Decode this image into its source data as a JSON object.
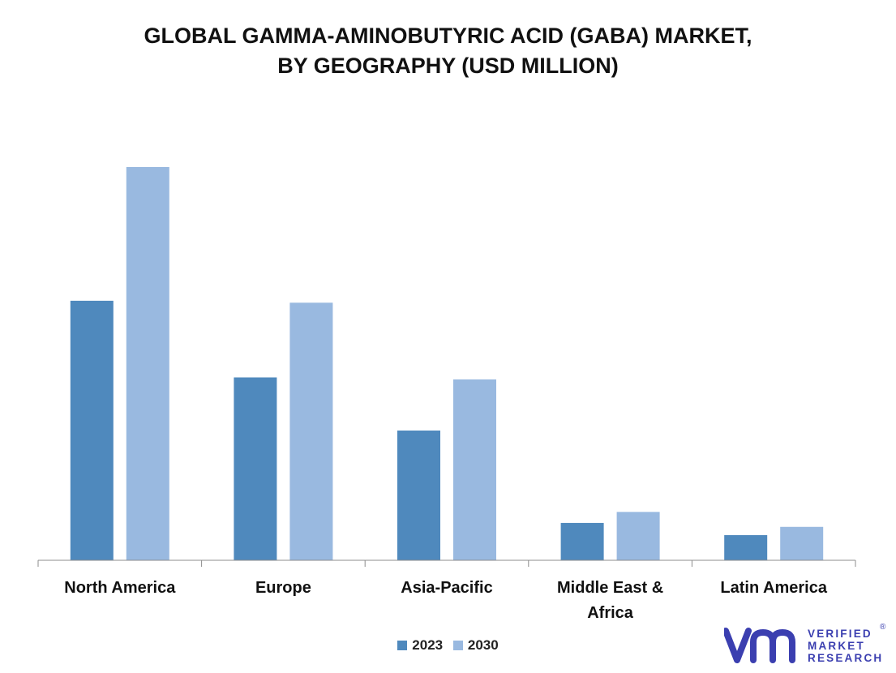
{
  "chart_data": {
    "type": "bar",
    "title": [
      "GLOBAL GAMMA-AMINOBUTYRIC ACID (GABA) MARKET,",
      "BY GEOGRAPHY (USD MILLION)"
    ],
    "categories": [
      [
        "North America"
      ],
      [
        "Europe"
      ],
      [
        "Asia-Pacific"
      ],
      [
        "Middle East &",
        "Africa"
      ],
      [
        "Latin America"
      ]
    ],
    "series": [
      {
        "name": "2023",
        "color": "#4f89bd",
        "values": [
          66,
          46.5,
          33,
          9.5,
          6.4
        ]
      },
      {
        "name": "2030",
        "color": "#99b9e0",
        "values": [
          100,
          65.5,
          46,
          12.3,
          8.5
        ]
      }
    ],
    "ylim": [
      0,
      100
    ],
    "grid": false,
    "legend_position": "bottom-center",
    "xlabel": "",
    "ylabel": ""
  },
  "logo": {
    "icon_name": "vmr-logo-icon",
    "lines": [
      "VERIFIED",
      "MARKET",
      "RESEARCH"
    ],
    "registered": "®",
    "color": "#3b3fb0"
  }
}
